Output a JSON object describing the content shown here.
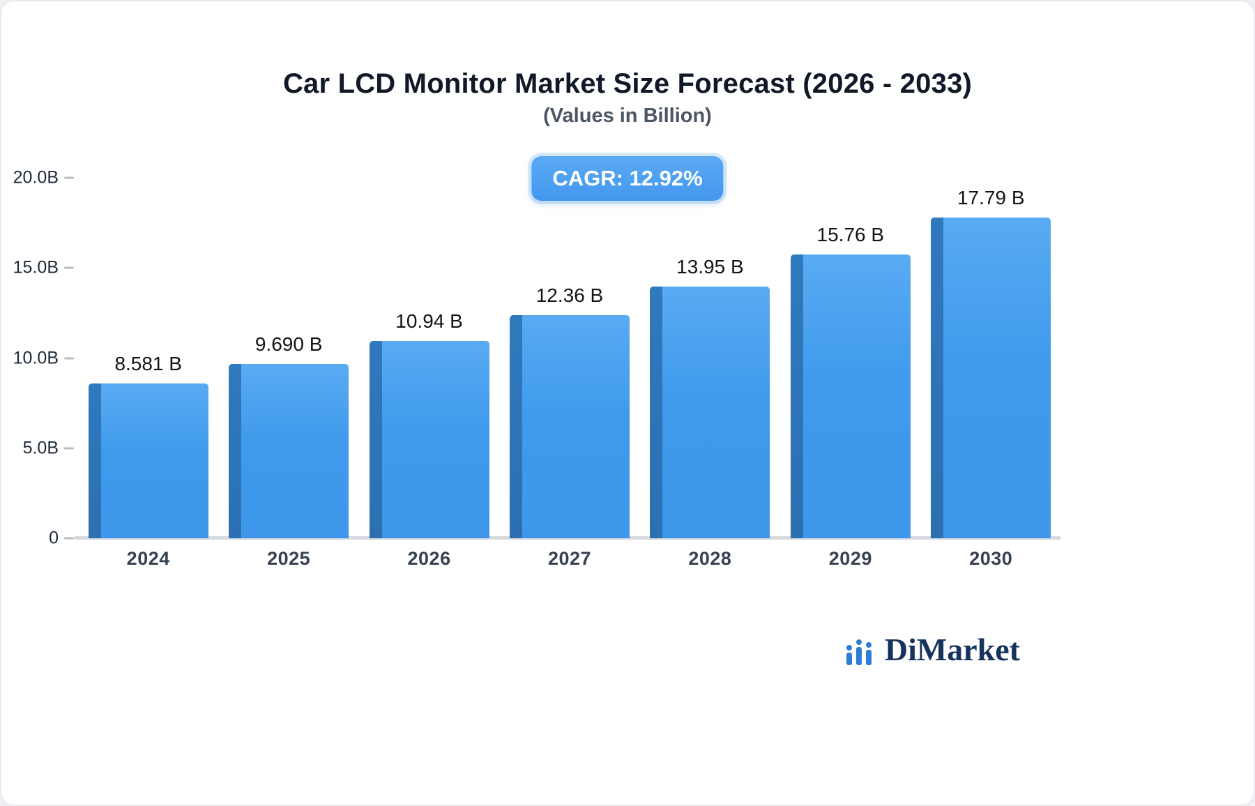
{
  "header": {
    "title": "Car LCD Monitor Market Size Forecast (2026 - 2033)",
    "subtitle": "(Values in Billion)",
    "cagr_label": "CAGR: 12.92%"
  },
  "chart_data": {
    "type": "bar",
    "title": "Car LCD Monitor Market Size Forecast (2026 - 2033)",
    "subtitle": "(Values in Billion)",
    "categories": [
      "2024",
      "2025",
      "2026",
      "2027",
      "2028",
      "2029",
      "2030"
    ],
    "values": [
      8.581,
      9.69,
      10.94,
      12.36,
      13.95,
      15.76,
      17.79
    ],
    "value_labels": [
      "8.581 B",
      "9.690 B",
      "10.94 B",
      "12.36 B",
      "13.95 B",
      "15.76 B",
      "17.79 B"
    ],
    "xlabel": "",
    "ylabel": "",
    "ylim": [
      0,
      20
    ],
    "y_ticks": [
      "20.0B",
      "15.0B",
      "10.0B",
      "5.0B",
      "0"
    ],
    "grid": false,
    "legend": "none",
    "bar_color": "#3f9aec",
    "bar_side_color": "#2c70b1"
  },
  "footer": {
    "brand": "DiMarket"
  }
}
